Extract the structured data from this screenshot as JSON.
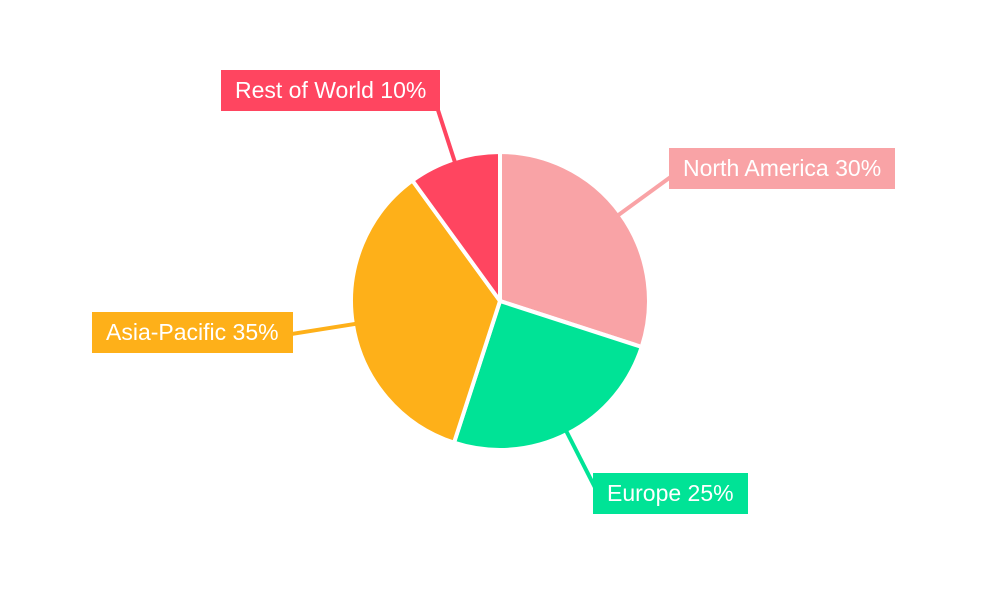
{
  "chart_data": {
    "type": "pie",
    "title": "",
    "categories": [
      "North America",
      "Europe",
      "Asia-Pacific",
      "Rest of World"
    ],
    "values": [
      30,
      25,
      35,
      10
    ],
    "unit": "%",
    "colors": [
      "#F9A3A6",
      "#00E396",
      "#FEB019",
      "#FF4560"
    ],
    "display_labels": [
      "North America 30%",
      "Europe 25%",
      "Asia-Pacific 35%",
      "Rest of World 10%"
    ],
    "label_text_color": "#FFFFFF",
    "slice_gap_color": "#FFFFFF",
    "background": "#FFFFFF",
    "start_angle_deg": 0,
    "direction": "clockwise",
    "legend": "none"
  }
}
